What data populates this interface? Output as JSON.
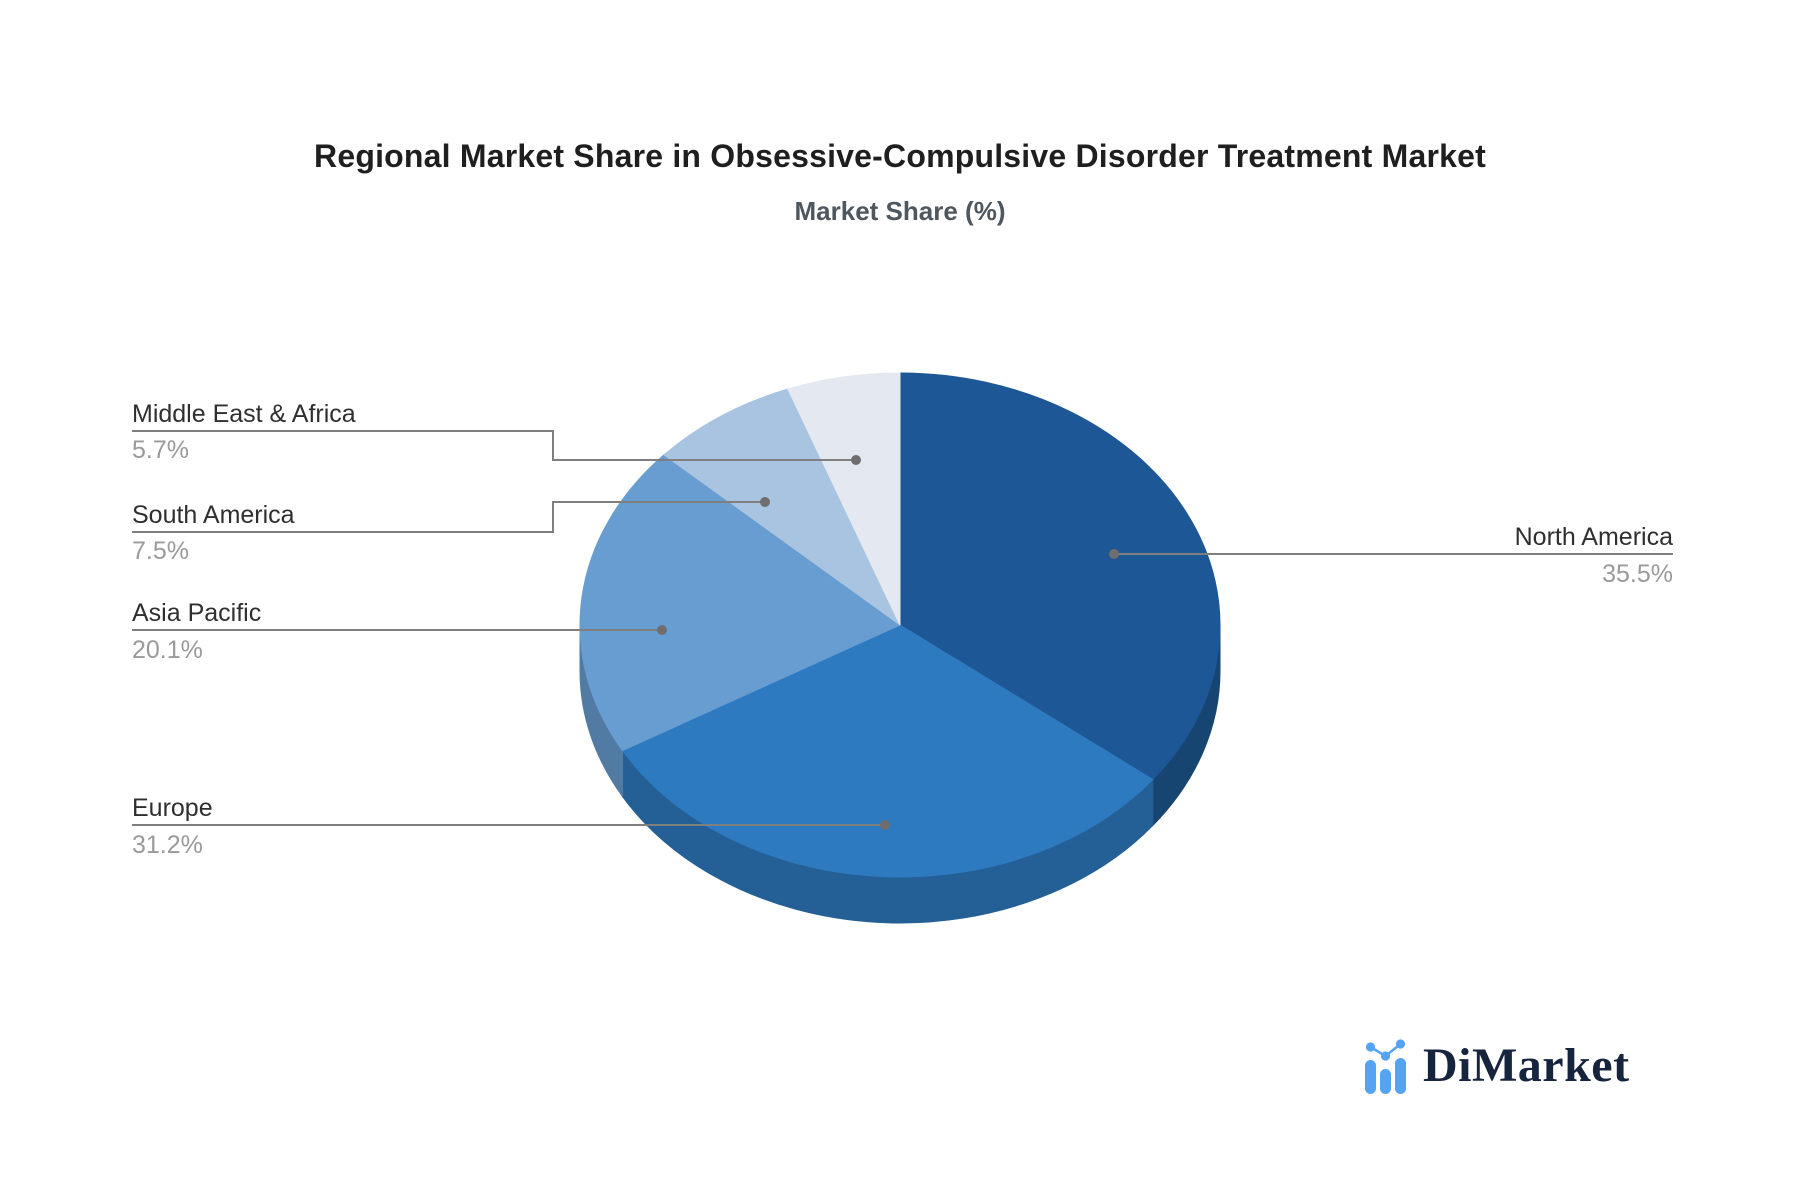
{
  "title": "Regional Market Share in Obsessive-Compulsive Disorder Treatment Market",
  "subtitle": "Market Share (%)",
  "branding": {
    "logo_text": "DiMarket",
    "logo_text_color": "#16243d",
    "logo_icon_color": "#55a4f3",
    "logo_icon": "bar-chart-with-dots-icon"
  },
  "colors": {
    "background": "#ffffff",
    "leader_line": "#7f7f7f",
    "leader_dot": "#6e6e6e",
    "label_text": "#2f2f2f",
    "percent_text": "#9a9a9a",
    "title_text": "#1f1f1f",
    "subtitle_text": "#4e565e"
  },
  "chart_data": {
    "type": "pie",
    "style": "3d",
    "title": "Regional Market Share in Obsessive-Compulsive Disorder Treatment Market",
    "subtitle": "Market Share (%)",
    "unit": "%",
    "start_angle_deg": 0,
    "direction": "clockwise",
    "legend": "none",
    "label_layout": "name above leader line, percent below, leader lines with end dots",
    "slices": [
      {
        "label": "North America",
        "value": 35.5,
        "percent_label": "35.5%",
        "color": "#1d5795",
        "side_color": "#174571",
        "label_side": "right"
      },
      {
        "label": "Europe",
        "value": 31.2,
        "percent_label": "31.2%",
        "color": "#2e7ac1",
        "side_color": "#245f96",
        "label_side": "left"
      },
      {
        "label": "Asia Pacific",
        "value": 20.1,
        "percent_label": "20.1%",
        "color": "#689dd1",
        "side_color": "#527ba3",
        "label_side": "left"
      },
      {
        "label": "South America",
        "value": 7.5,
        "percent_label": "7.5%",
        "color": "#a9c4e1",
        "side_color": "#8599ae",
        "label_side": "left"
      },
      {
        "label": "Middle East & Africa",
        "value": 5.7,
        "percent_label": "5.7%",
        "color": "#e4e9f1",
        "side_color": "#b2b9c3",
        "label_side": "left"
      }
    ]
  }
}
